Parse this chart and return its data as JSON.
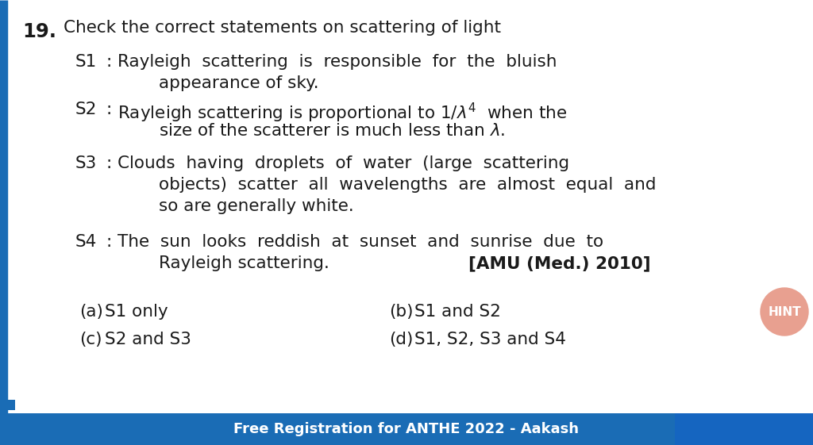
{
  "bg_color": "#ffffff",
  "text_color": "#1a1a1a",
  "question_number": "19.",
  "question_text": "Check the correct statements on scattering of light",
  "source_label": "[AMU (Med.) 2010]",
  "hint_text": "HINT",
  "hint_color": "#e8a090",
  "options": [
    {
      "label": "(a)",
      "text": "S1 only"
    },
    {
      "label": "(b)",
      "text": "S1 and S2"
    },
    {
      "label": "(c)",
      "text": "S2 and S3"
    },
    {
      "label": "(d)",
      "text": "S1, S2, S3 and S4"
    }
  ],
  "footer_text": "Free Registration for ANTHE 2022 - Aakash",
  "footer_bg": "#1a6cb5",
  "footer_text_color": "#ffffff",
  "left_icon_color": "#1a6cb5",
  "main_font_size": 15.5
}
